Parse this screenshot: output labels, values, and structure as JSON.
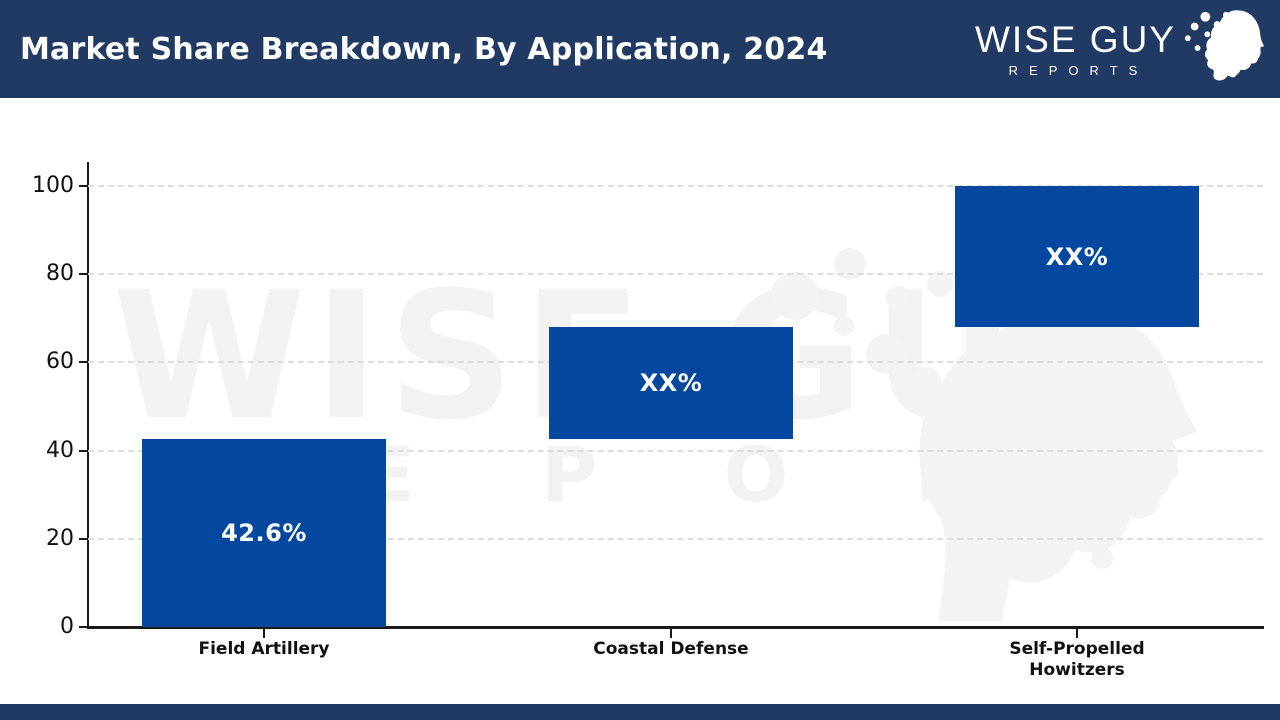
{
  "header": {
    "title": "Market Share Breakdown, By Application, 2024",
    "logo": {
      "wordmark": "WISE GUY",
      "subtext": "REPORTS"
    }
  },
  "watermark": {
    "line1": "WISE GUY",
    "line2": "R E P O R T S"
  },
  "chart_data": {
    "type": "bar",
    "subtype": "floating-segment (waterfall style market share)",
    "title": "Market Share Breakdown, By Application, 2024",
    "categories": [
      "Field Artillery",
      "Coastal Defense",
      "Self-Propelled Howitzers"
    ],
    "bars": [
      {
        "category": "Field Artillery",
        "label": "42.6%",
        "start": 0,
        "end": 42.6
      },
      {
        "category": "Coastal Defense",
        "label": "XX%",
        "start": 42.6,
        "end": 68
      },
      {
        "category": "Self-Propelled Howitzers",
        "label": "XX%",
        "start": 68,
        "end": 100
      }
    ],
    "xlabel": "",
    "ylabel": "",
    "ylim": [
      0,
      100
    ],
    "yticks": [
      0,
      20,
      40,
      60,
      80,
      100
    ],
    "grid": "horizontal dashed",
    "legend": "none",
    "bar_color": "#04479f",
    "label_color": "#ffffff"
  },
  "colors": {
    "header_navy": "#213a64",
    "bar_blue": "#04479f",
    "grid_gray": "#dcdcdc",
    "axis_dark": "#1a1a1a",
    "watermark_gray": "#f2f2f2",
    "text_dark": "#111111",
    "white": "#ffffff"
  }
}
